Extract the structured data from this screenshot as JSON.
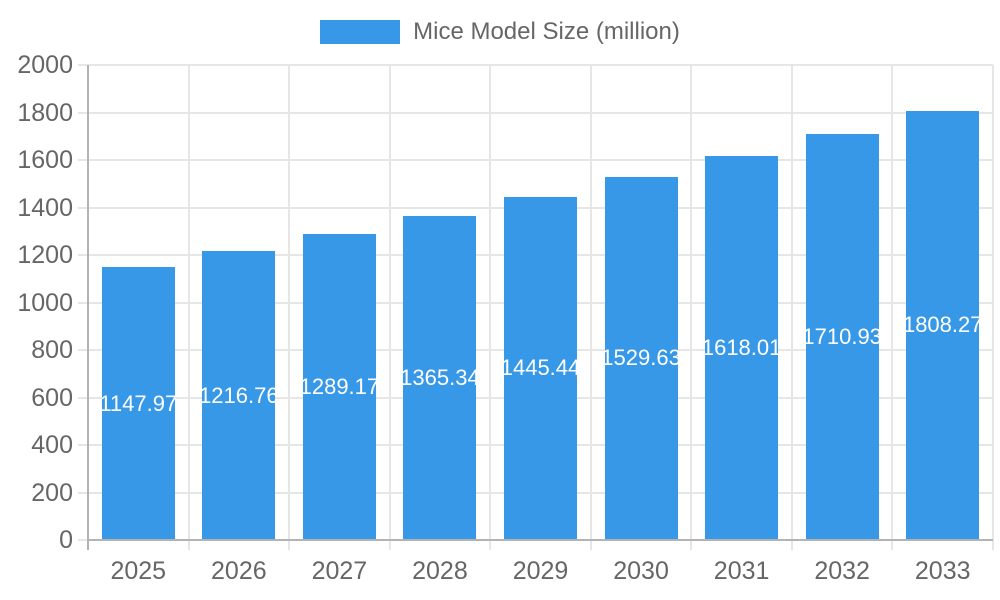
{
  "legend": {
    "label": "Mice Model Size (million)"
  },
  "colors": {
    "bar": "#3798e8",
    "bar_value_text": "#ffffff",
    "tick_text": "#666666",
    "grid": "#e6e6e6",
    "axis": "#b3b3b3",
    "background": "#ffffff"
  },
  "chart_data": {
    "type": "bar",
    "title": "Mice Model Size (million)",
    "series_name": "Mice Model Size (million)",
    "categories": [
      "2025",
      "2026",
      "2027",
      "2028",
      "2029",
      "2030",
      "2031",
      "2032",
      "2033"
    ],
    "values": [
      1147.97,
      1216.76,
      1289.17,
      1365.34,
      1445.44,
      1529.63,
      1618.01,
      1710.93,
      1808.27
    ],
    "value_label_decimals": 2,
    "value_labels_position": "inside-center-white-clipped",
    "xlabel": "",
    "ylabel": "",
    "ylim": [
      0,
      2000
    ],
    "ytick_step": 200,
    "legend_position": "top-center",
    "grid": true
  }
}
